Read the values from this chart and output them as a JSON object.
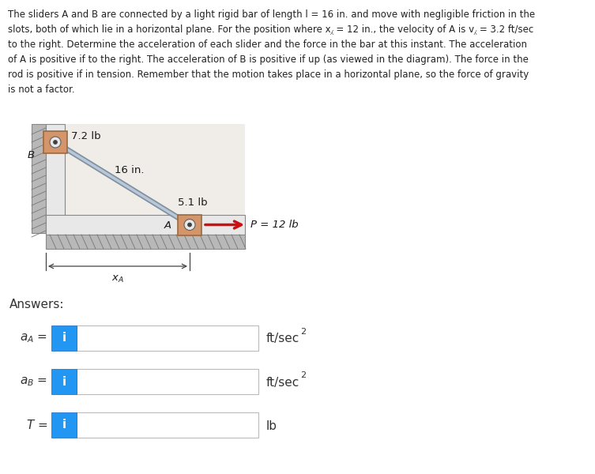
{
  "background_color": "#ffffff",
  "problem_text_lines": [
    "The sliders A and B are connected by a light rigid bar of length l = 16 in. and move with negligible friction in the",
    "slots, both of which lie in a horizontal plane. For the position where x⁁ = 12 in., the velocity of A is v⁁ = 3.2 ft/sec",
    "to the right. Determine the acceleration of each slider and the force in the bar at this instant. The acceleration",
    "of A is positive if to the right. The acceleration of B is positive if up (as viewed in the diagram). The force in the",
    "rod is positive if in tension. Remember that the motion takes place in a horizontal plane, so the force of gravity",
    "is not a factor."
  ],
  "diagram": {
    "slot_fill": "#d8d8d8",
    "slot_edge": "#888888",
    "wall_fill": "#b8b8b8",
    "wall_edge": "#888888",
    "slider_fill": "#d4956a",
    "slider_edge": "#9a6a40",
    "pin_outer": "#e8e8e8",
    "pin_inner": "#404040",
    "bar_color_dark": "#8090a0",
    "bar_color_light": "#b8c8d8",
    "arrow_color": "#cc1111",
    "text_color": "#1a1a1a",
    "label_72lb": "7.2 lb",
    "label_16in": "16 in.",
    "label_51lb": "5.1 lb",
    "label_A": "A",
    "label_B": "B",
    "label_P": "P = 12 lb",
    "label_xA": "x_A"
  },
  "answers": {
    "answers_label": "Answers:",
    "box_blue": "#2196F3",
    "box_edge_blue": "#1565C0",
    "box_bg": "#ffffff",
    "box_border": "#bbbbbb",
    "text_color": "#1a1a1a",
    "row_labels": [
      "a_A =",
      "a_B =",
      "T ="
    ],
    "row_units": [
      "ft/sec2",
      "ft/sec2",
      "lb"
    ]
  }
}
